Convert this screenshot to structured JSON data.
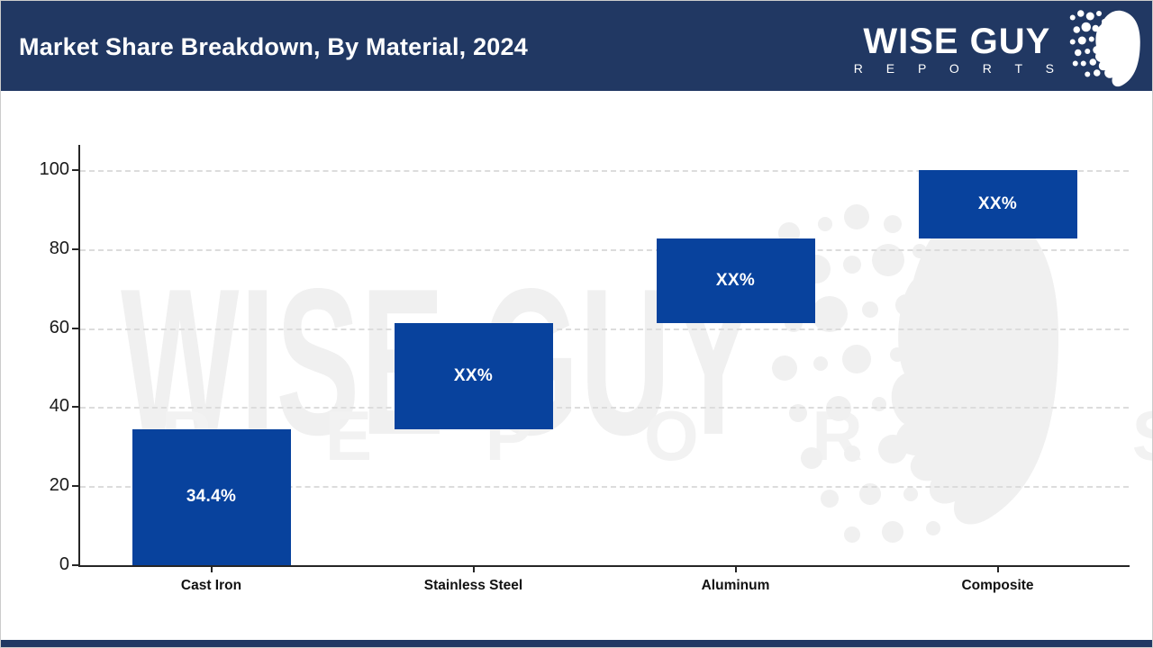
{
  "header": {
    "title": "Market Share Breakdown, By Material, 2024",
    "background_color": "#213863",
    "logo": {
      "line1": "WISE GUY",
      "line2": "R E P O R T S"
    }
  },
  "watermark": {
    "line1": "WISE GUY",
    "line2": "R E P O R T S"
  },
  "chart_data": {
    "type": "bar",
    "subtype": "waterfall",
    "title": "Market Share Breakdown, By Material, 2024",
    "categories": [
      "Cast Iron",
      "Stainless Steel",
      "Aluminum",
      "Composite"
    ],
    "values": [
      34.4,
      26.9,
      21.3,
      17.4
    ],
    "segments": [
      {
        "category": "Cast Iron",
        "start": 0,
        "end": 34.4,
        "label": "34.4%"
      },
      {
        "category": "Stainless Steel",
        "start": 34.4,
        "end": 61.3,
        "label": "XX%"
      },
      {
        "category": "Aluminum",
        "start": 61.3,
        "end": 82.6,
        "label": "XX%"
      },
      {
        "category": "Composite",
        "start": 82.6,
        "end": 100,
        "label": "XX%"
      }
    ],
    "xlabel": "",
    "ylabel": "",
    "ylim": [
      0,
      100
    ],
    "yticks": [
      0,
      20,
      40,
      60,
      80,
      100
    ],
    "grid": "horizontal-dashed",
    "legend": "none",
    "bar_color": "#08429d",
    "bar_label_color": "#ffffff",
    "axis_color": "#262626",
    "gridline_color": "#dcdcdc"
  },
  "footer": {
    "background_color": "#213863"
  }
}
